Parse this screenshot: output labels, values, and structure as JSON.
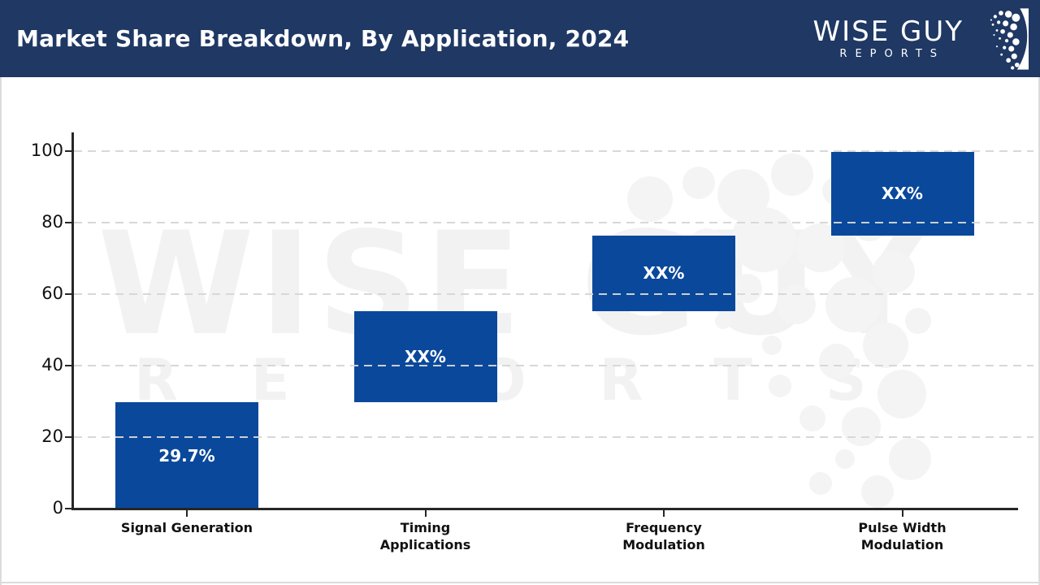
{
  "header": {
    "title": "Market Share Breakdown, By Application, 2024"
  },
  "logo": {
    "line1": "WISE GUY",
    "line2": "REPORTS"
  },
  "watermark": {
    "line1": "WISE GUY",
    "line2": "REPORTS"
  },
  "chart_data": {
    "type": "bar",
    "subtype": "waterfall",
    "title": "Market Share Breakdown, By Application, 2024",
    "categories": [
      "Signal Generation",
      "Timing\nApplications",
      "Frequency\nModulation",
      "Pulse Width\nModulation"
    ],
    "segments": [
      {
        "category": "Signal Generation",
        "start": 0,
        "end": 29.7,
        "label": "29.7%"
      },
      {
        "category": "Timing Applications",
        "start": 29.7,
        "end": 55.2,
        "label": "XX%"
      },
      {
        "category": "Frequency Modulation",
        "start": 55.2,
        "end": 76.4,
        "label": "XX%"
      },
      {
        "category": "Pulse Width Modulation",
        "start": 76.4,
        "end": 99.8,
        "label": "XX%"
      }
    ],
    "yticks": [
      0,
      20,
      40,
      60,
      80,
      100
    ],
    "ylim": [
      0,
      105
    ],
    "xlabel": "",
    "ylabel": "",
    "grid": "horizontal-dashed",
    "legend": "none",
    "bar_color": "#0a489b",
    "label_color": "#ffffff",
    "axis_color": "#262626"
  }
}
